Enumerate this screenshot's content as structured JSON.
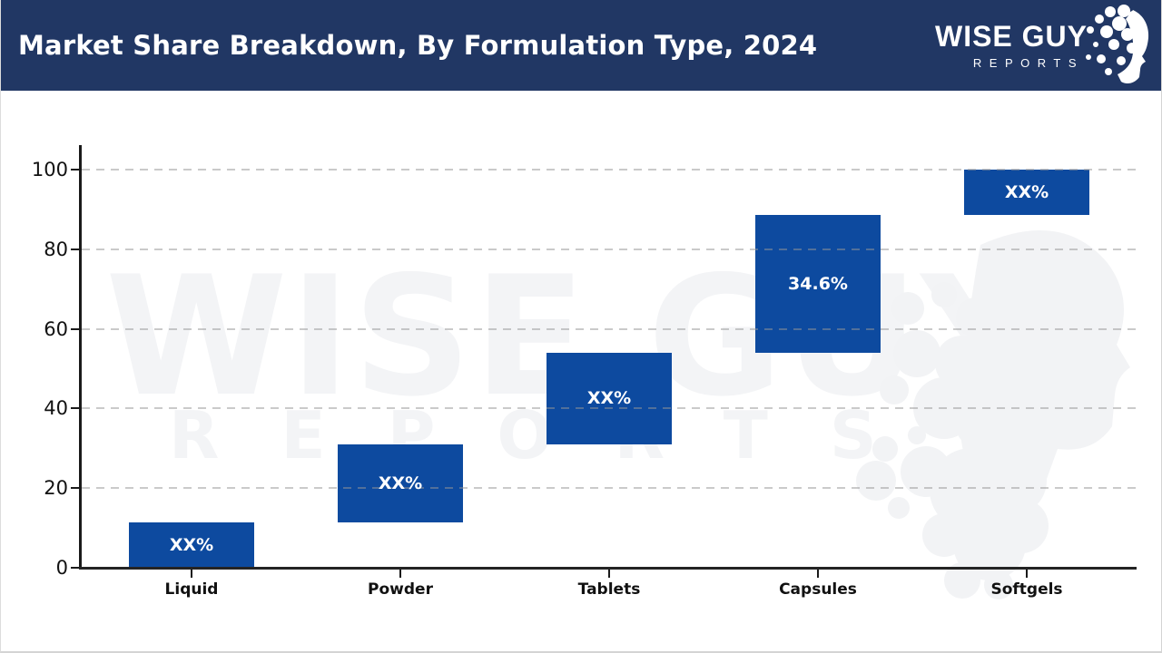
{
  "header": {
    "title": "Market Share Breakdown, By Formulation Type, 2024",
    "background_color": "#213764"
  },
  "logo": {
    "line1": "WISE GUY",
    "line2": "REPORTS",
    "icon": "dotted-head-profile"
  },
  "watermark": {
    "line1": "WISE GUY",
    "line2": "REPORTS"
  },
  "chart_data": {
    "type": "bar",
    "subtype": "floating-waterfall",
    "title": "Market Share Breakdown, By Formulation Type, 2024",
    "categories": [
      "Liquid",
      "Powder",
      "Tablets",
      "Capsules",
      "Softgels"
    ],
    "segments": [
      {
        "category": "Liquid",
        "start": 0,
        "end": 11.5,
        "value_label": "XX%"
      },
      {
        "category": "Powder",
        "start": 11.5,
        "end": 31,
        "value_label": "XX%"
      },
      {
        "category": "Tablets",
        "start": 31,
        "end": 54,
        "value_label": "XX%"
      },
      {
        "category": "Capsules",
        "start": 54,
        "end": 88.6,
        "value_label": "34.6%"
      },
      {
        "category": "Softgels",
        "start": 88.6,
        "end": 100,
        "value_label": "XX%"
      }
    ],
    "y_ticks": [
      0,
      20,
      40,
      60,
      80,
      100
    ],
    "ylim": [
      0,
      100
    ],
    "xlabel": "",
    "ylabel": "",
    "grid": "horizontal-dashed",
    "bar_color": "#0d4a9f",
    "bar_label_color": "#ffffff",
    "axis_color": "#1a1a1a",
    "legend": "none"
  }
}
